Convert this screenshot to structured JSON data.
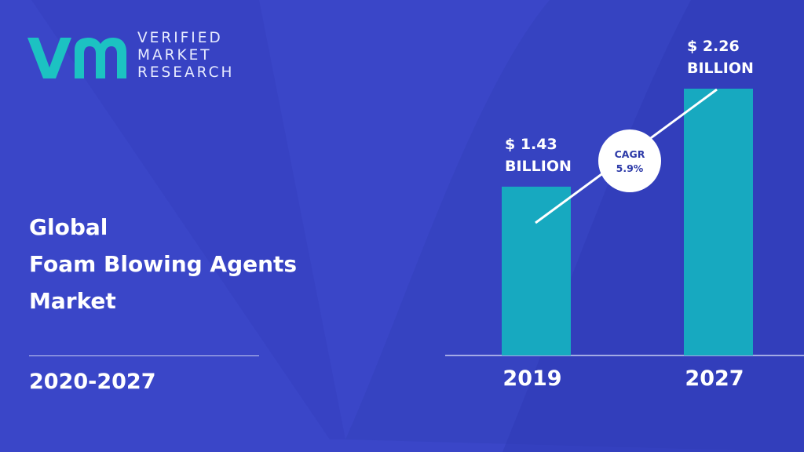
{
  "logo": {
    "mark": "vm",
    "line1": "VERIFIED",
    "line2": "MARKET",
    "line3": "RESEARCH"
  },
  "title": {
    "line1": "Global",
    "line2": "Foam Blowing Agents",
    "line3": "Market"
  },
  "period": "2020-2027",
  "colors": {
    "background": "#3a46c8",
    "bar": "#17a9c0",
    "logo_accent": "#1cc2c2"
  },
  "chart_data": {
    "type": "bar",
    "categories": [
      "2019",
      "2027"
    ],
    "values": [
      1.43,
      2.26
    ],
    "value_labels": [
      {
        "line1": "$ 1.43",
        "line2": "BILLION"
      },
      {
        "line1": "$ 2.26",
        "line2": "BILLION"
      }
    ],
    "unit": "USD Billion",
    "ylim": [
      0,
      2.26
    ],
    "grid": false,
    "legend": "none",
    "cagr": {
      "label": "CAGR",
      "value": "5.9%"
    }
  }
}
